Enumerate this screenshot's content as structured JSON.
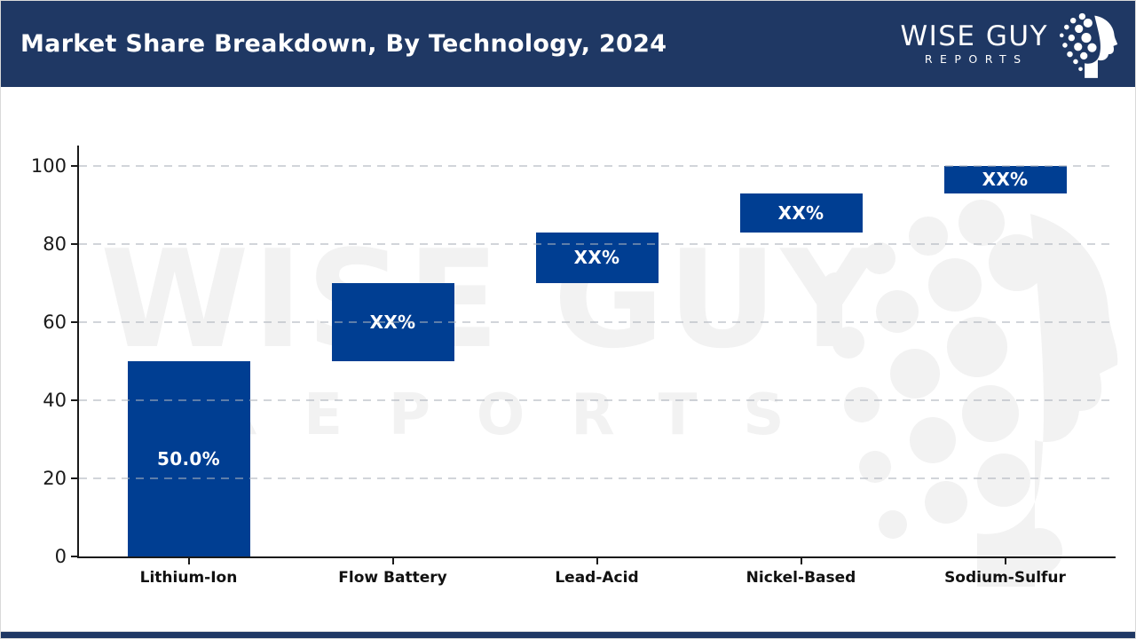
{
  "header": {
    "title": "Market Share Breakdown, By Technology, 2024",
    "bg_color": "#1f3864",
    "logo": {
      "line1": "WISE GUY",
      "line2": "REPORTS"
    }
  },
  "watermark": {
    "line1": "WISE GUY",
    "line2": "REPORTS"
  },
  "chart_data": {
    "type": "bar",
    "subtype": "waterfall",
    "title": "Market Share Breakdown, By Technology, 2024",
    "categories": [
      "Lithium-Ion",
      "Flow Battery",
      "Lead-Acid",
      "Nickel-Based",
      "Sodium-Sulfur"
    ],
    "values": [
      50,
      20,
      13,
      10,
      7
    ],
    "segments": [
      {
        "category": "Lithium-Ion",
        "start": 0,
        "end": 50,
        "label": "50.0%"
      },
      {
        "category": "Flow Battery",
        "start": 50,
        "end": 70,
        "label": "XX%"
      },
      {
        "category": "Lead-Acid",
        "start": 70,
        "end": 83,
        "label": "XX%"
      },
      {
        "category": "Nickel-Based",
        "start": 83,
        "end": 93,
        "label": "XX%"
      },
      {
        "category": "Sodium-Sulfur",
        "start": 93,
        "end": 100,
        "label": "XX%"
      }
    ],
    "xlabel": "",
    "ylabel": "",
    "y_ticks": [
      0,
      20,
      40,
      60,
      80,
      100
    ],
    "ylim": [
      0,
      105
    ],
    "grid": "horizontal-dashed",
    "legend": "none",
    "bar_color": "#003e92",
    "grid_color": "#cccccc",
    "axis_color": "#1a1a1a"
  }
}
